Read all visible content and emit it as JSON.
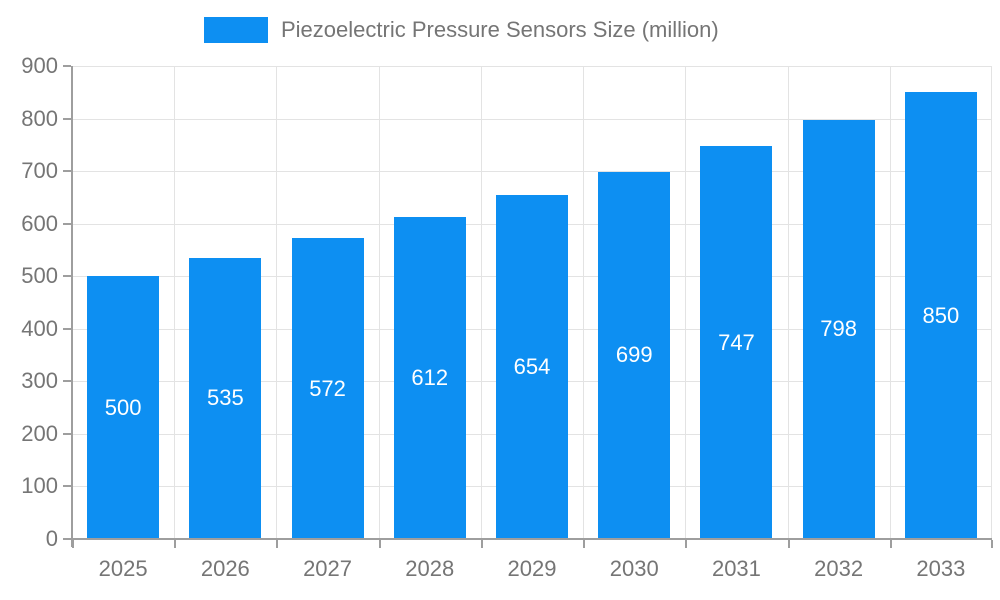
{
  "legend": {
    "label": "Piezoelectric Pressure Sensors Size (million)"
  },
  "colors": {
    "bar": "#0d8ff2",
    "grid": "#e3e3e3",
    "axis": "#9e9e9e",
    "tick_text": "#757575",
    "value_label": "#ffffff"
  },
  "chart_data": {
    "type": "bar",
    "title": "Piezoelectric Pressure Sensors Size (million)",
    "categories": [
      "2025",
      "2026",
      "2027",
      "2028",
      "2029",
      "2030",
      "2031",
      "2032",
      "2033"
    ],
    "values": [
      500,
      535,
      572,
      612,
      654,
      699,
      747,
      798,
      850
    ],
    "xlabel": "",
    "ylabel": "",
    "ylim": [
      0,
      900
    ],
    "ytick_step": 100,
    "ytick_labels": [
      "0",
      "100",
      "200",
      "300",
      "400",
      "500",
      "600",
      "700",
      "800",
      "900"
    ],
    "grid": true,
    "legend_position": "top",
    "bar_label_position": "center-inside"
  }
}
